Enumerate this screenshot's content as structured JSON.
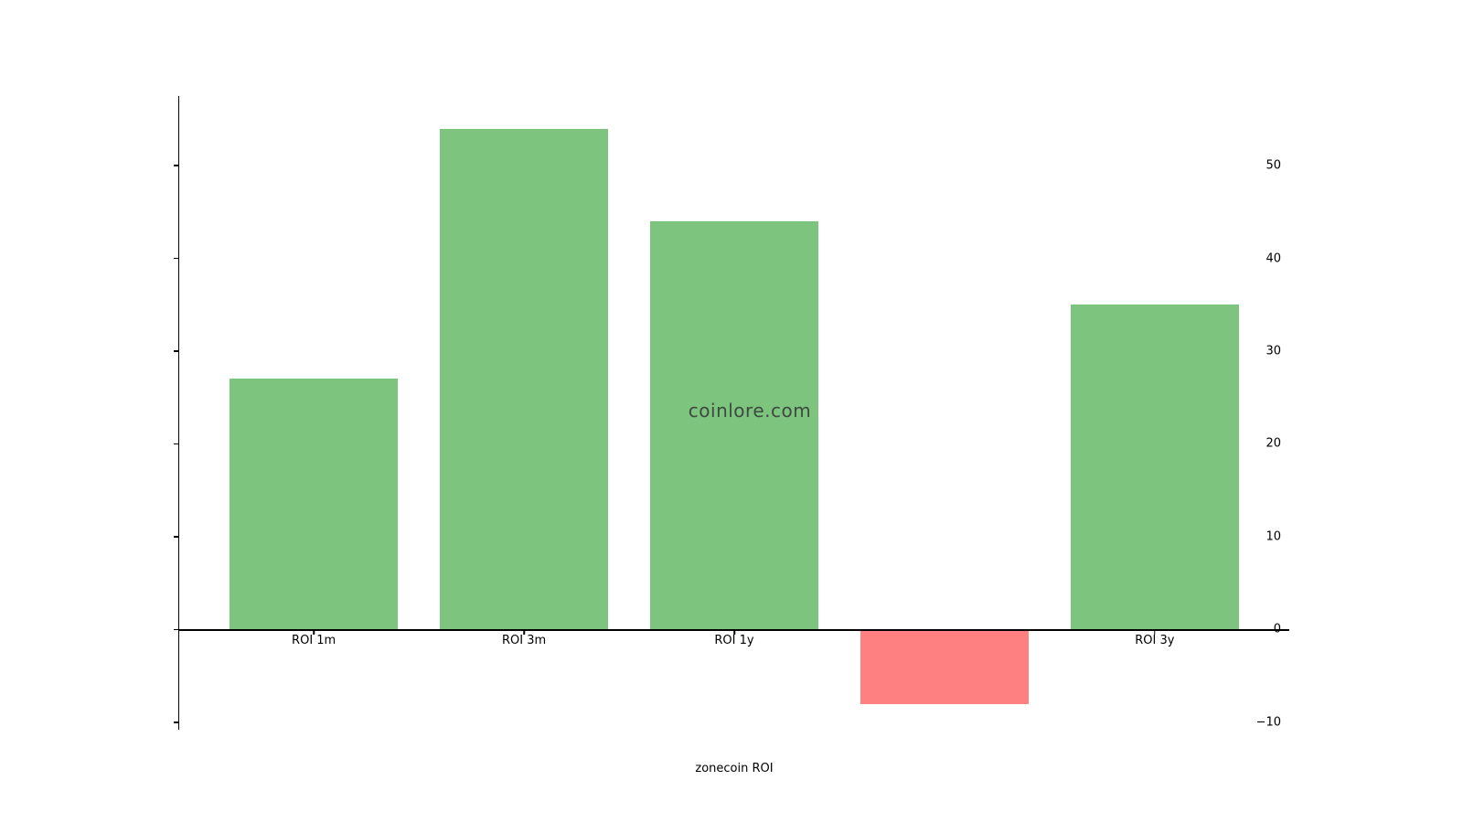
{
  "chart_data": {
    "type": "bar",
    "title": "",
    "xlabel": "zonecoin ROI",
    "ylabel": "",
    "categories": [
      "ROI 1m",
      "ROI 3m",
      "ROI 1y",
      "",
      "ROI 3y"
    ],
    "values": [
      27,
      54,
      44,
      -8,
      35
    ],
    "positive_color": "#7dc47f",
    "negative_color": "#ff8080",
    "axis_color": "#000000",
    "yticks": [
      -10,
      0,
      10,
      20,
      30,
      40,
      50
    ],
    "ylim": [
      -10.8,
      57.5
    ],
    "grid": false,
    "legend": "none",
    "watermark": "coinlore.com"
  }
}
